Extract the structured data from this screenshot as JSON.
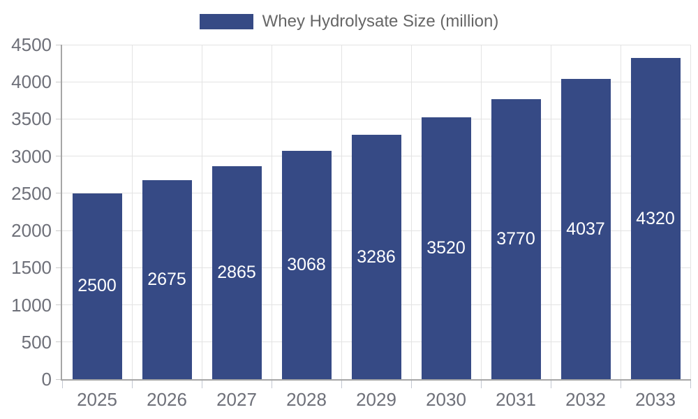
{
  "legend": {
    "label": "Whey Hydrolysate Size (million)"
  },
  "chart_data": {
    "type": "bar",
    "title": "Whey Hydrolysate Size (million)",
    "series_name": "Whey Hydrolysate Size (million)",
    "categories": [
      "2025",
      "2026",
      "2027",
      "2028",
      "2029",
      "2030",
      "2031",
      "2032",
      "2033"
    ],
    "values": [
      2500,
      2675,
      2865,
      3068,
      3286,
      3520,
      3770,
      4037,
      4320
    ],
    "xlabel": "",
    "ylabel": "",
    "ylim": [
      0,
      4500
    ],
    "yticks": [
      0,
      500,
      1000,
      1500,
      2000,
      2500,
      3000,
      3500,
      4000,
      4500
    ],
    "grid": true,
    "legend_position": "top",
    "bar_label_position": "center"
  },
  "colors": {
    "bar": "#364a85",
    "bar_label": "#ffffff",
    "grid": "#e3e3e3",
    "axis": "#a6a6a6",
    "x_tick": "#c2c7d1",
    "y_tick": "#cacaca",
    "axis_text": "#6e7079",
    "legend_text": "#666666",
    "background": "#ffffff"
  }
}
